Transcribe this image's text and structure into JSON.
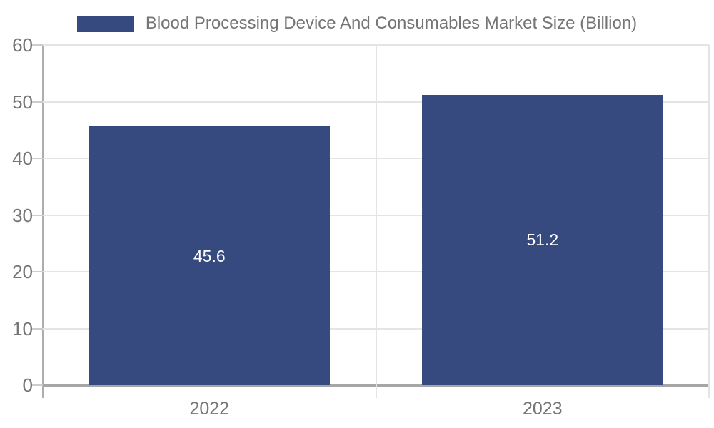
{
  "legend": {
    "label": "Blood Processing Device And Consumables Market Size (Billion)"
  },
  "chart_data": {
    "type": "bar",
    "title": "",
    "categories": [
      "2022",
      "2023"
    ],
    "series": [
      {
        "name": "Blood Processing Device And Consumables Market Size (Billion)",
        "values": [
          45.6,
          51.2
        ]
      }
    ],
    "data_labels": [
      "45.6",
      "51.2"
    ],
    "xlabel": "",
    "ylabel": "",
    "ylim": [
      0,
      60
    ],
    "yticks": [
      0,
      10,
      20,
      30,
      40,
      50,
      60
    ],
    "grid": true,
    "legend_position": "top"
  },
  "colors": {
    "bar_fill": "#374A80",
    "grid_line": "#E4E4E4",
    "axis_line_x": "#A6A6A6",
    "axis_line_y": "#ADADAD",
    "tick_mark": "#CCCCCC",
    "tick_text": "#757575",
    "legend_text": "#757575",
    "data_label_text": "#FDFDFD",
    "background": "#FFFFFF"
  }
}
